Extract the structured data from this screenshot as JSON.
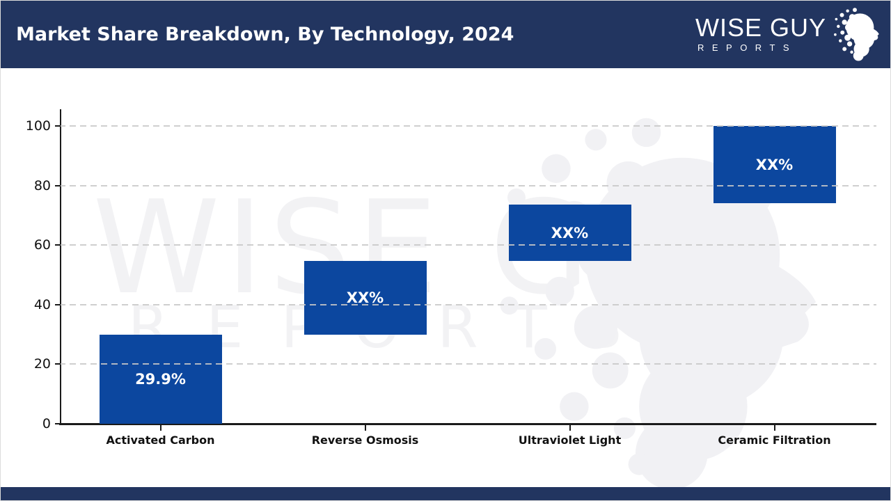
{
  "header": {
    "title": "Market Share Breakdown, By Technology, 2024",
    "logo": {
      "line1": "WISE GUY",
      "line2": "REPORTS"
    }
  },
  "watermark": {
    "line1": "WISE GUY",
    "line2": "REPORTS"
  },
  "colors": {
    "header_bg": "#223560",
    "footer_bg": "#223560",
    "bar_fill": "#0c479f",
    "bar_label_text": "#ffffff",
    "axis": "#1a1a1a",
    "gridline": "#cccccc",
    "watermark": "#f2f2f4",
    "title_text": "#ffffff"
  },
  "chart_data": {
    "type": "bar",
    "subtype": "floating-waterfall-segments",
    "title": "Market Share Breakdown, By Technology, 2024",
    "categories": [
      "Activated Carbon",
      "Reverse Osmosis",
      "Ultraviolet Light",
      "Ceramic Filtration"
    ],
    "segments": [
      {
        "category": "Activated Carbon",
        "start": 0,
        "end": 29.9,
        "label": "29.9%"
      },
      {
        "category": "Reverse Osmosis",
        "start": 29.9,
        "end": 54.7,
        "label": "XX%"
      },
      {
        "category": "Ultraviolet Light",
        "start": 54.7,
        "end": 73.5,
        "label": "XX%"
      },
      {
        "category": "Ceramic Filtration",
        "start": 74,
        "end": 100,
        "label": "XX%"
      }
    ],
    "xlabel": "",
    "ylabel": "",
    "yticks": [
      0,
      20,
      40,
      60,
      80,
      100
    ],
    "ylim": [
      0,
      105
    ],
    "grid": "horizontal-dashed",
    "legend": "none"
  }
}
